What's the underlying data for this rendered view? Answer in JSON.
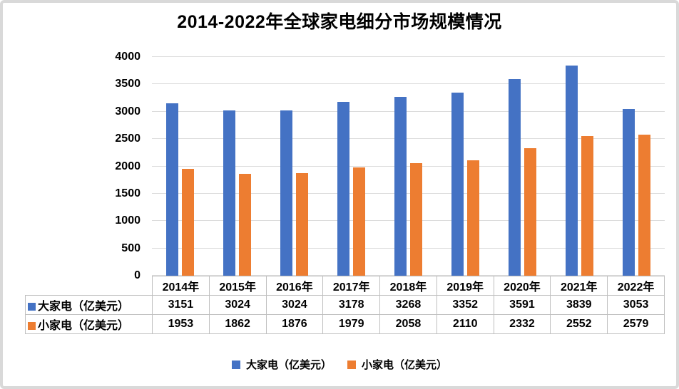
{
  "colors": {
    "series_blue": "#4472C4",
    "series_orange": "#ED7D31",
    "gridline": "#DCDCDC",
    "table_border": "#BFBFBF",
    "frame_border": "#D9D9D9"
  },
  "chart_data": {
    "type": "bar",
    "title": "2014-2022年全球家电细分市场规模情况",
    "categories": [
      "2014年",
      "2015年",
      "2016年",
      "2017年",
      "2018年",
      "2019年",
      "2020年",
      "2021年",
      "2022年"
    ],
    "series": [
      {
        "name": "大家电（亿美元）",
        "color": "#4472C4",
        "values": [
          3151,
          3024,
          3024,
          3178,
          3268,
          3352,
          3591,
          3839,
          3053
        ]
      },
      {
        "name": "小家电（亿美元）",
        "color": "#ED7D31",
        "values": [
          1953,
          1862,
          1876,
          1979,
          2058,
          2110,
          2332,
          2552,
          2579
        ]
      }
    ],
    "xlabel": "",
    "ylabel": "",
    "ylim": [
      0,
      4000
    ],
    "yticks": [
      0,
      500,
      1000,
      1500,
      2000,
      2500,
      3000,
      3500,
      4000
    ],
    "grid": true,
    "legend_position": "bottom",
    "data_table_visible": true
  }
}
